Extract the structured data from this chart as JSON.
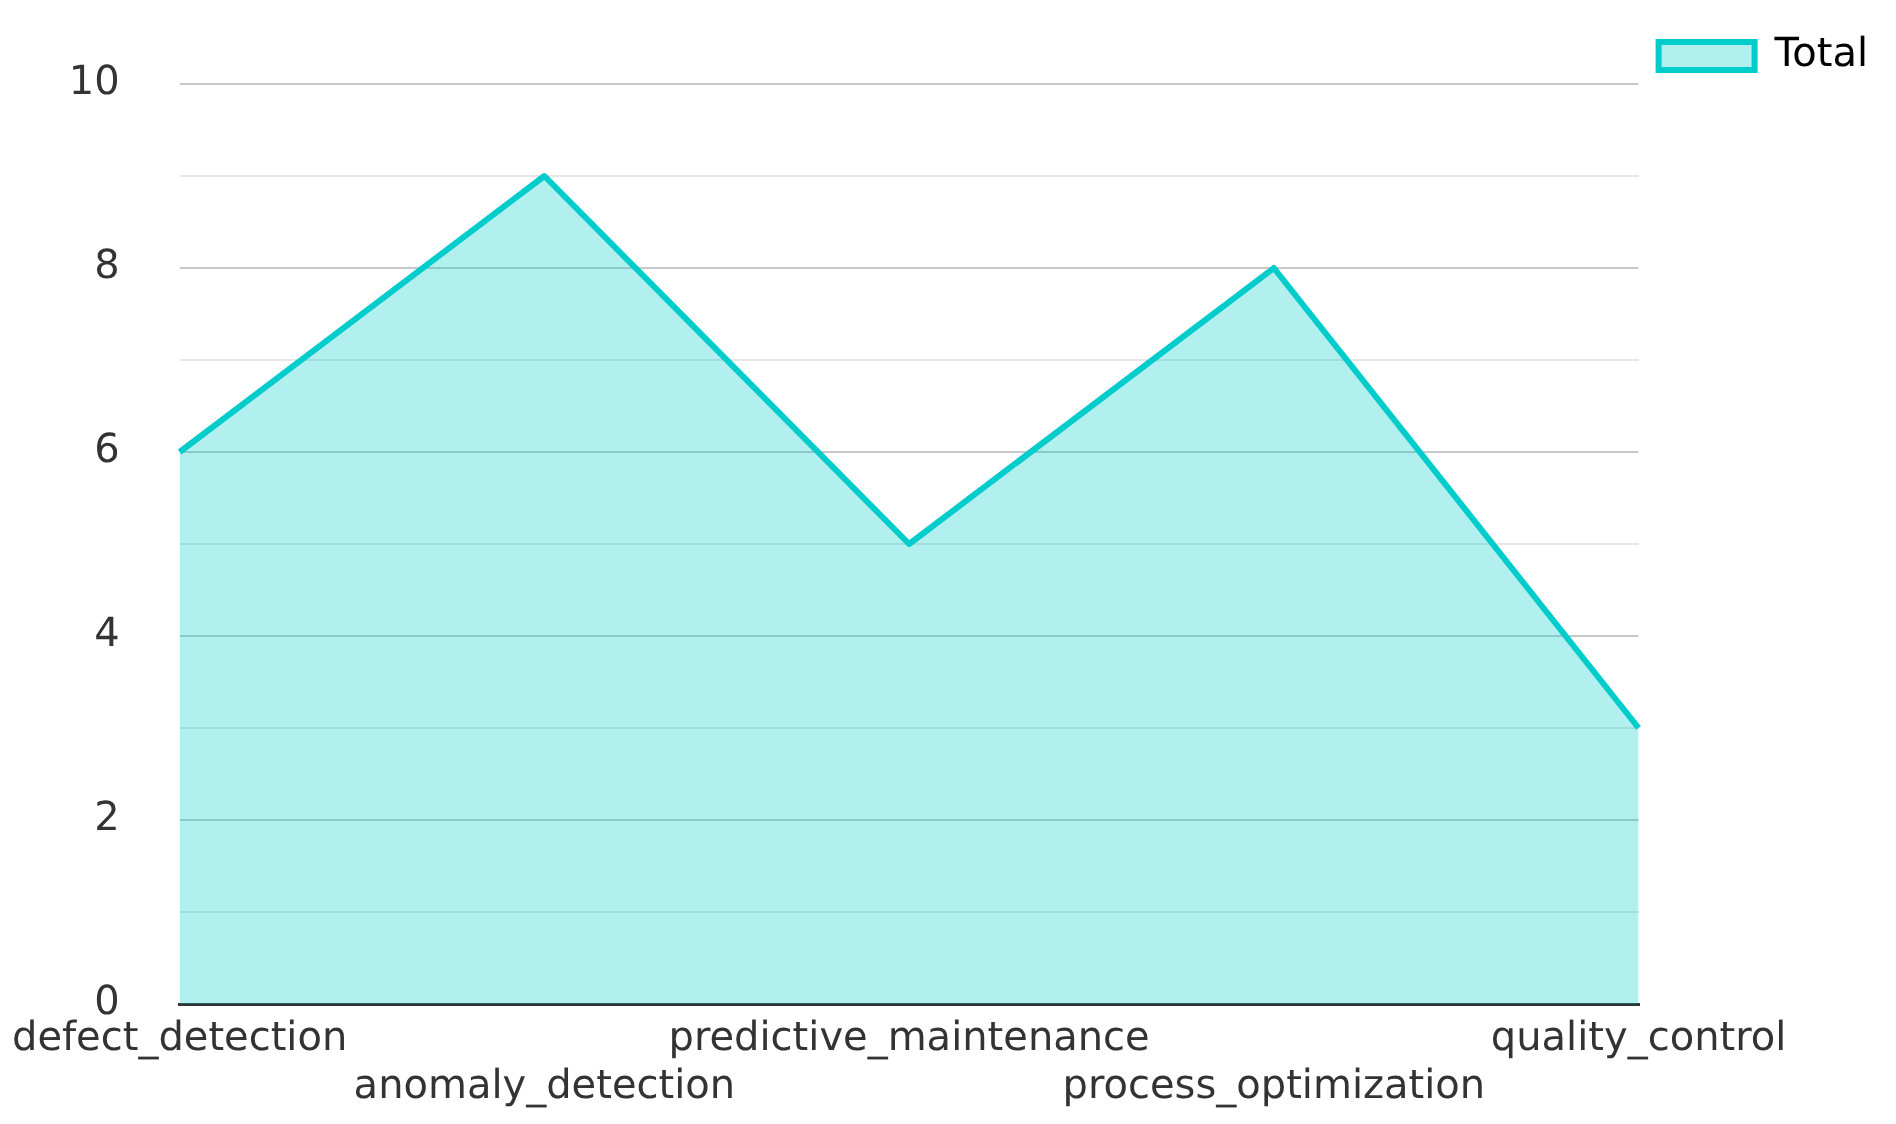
{
  "chart_data": {
    "type": "area",
    "categories": [
      "defect_detection",
      "anomaly_detection",
      "predictive_maintenance",
      "process_optimization",
      "quality_control"
    ],
    "series": [
      {
        "name": "Total",
        "color": "#00cccc",
        "values": [
          6,
          9,
          5,
          8,
          3
        ]
      }
    ],
    "ylim": [
      0,
      10
    ],
    "yticks": [
      0,
      {
        "value": 1,
        "label": null
      },
      2,
      {
        "value": 3,
        "label": null
      },
      4,
      {
        "value": 5,
        "label": null
      },
      6,
      {
        "value": 7,
        "label": null
      },
      8,
      {
        "value": 9,
        "label": null
      },
      10
    ],
    "grid": "y",
    "legend": "top right",
    "marker": "none"
  }
}
